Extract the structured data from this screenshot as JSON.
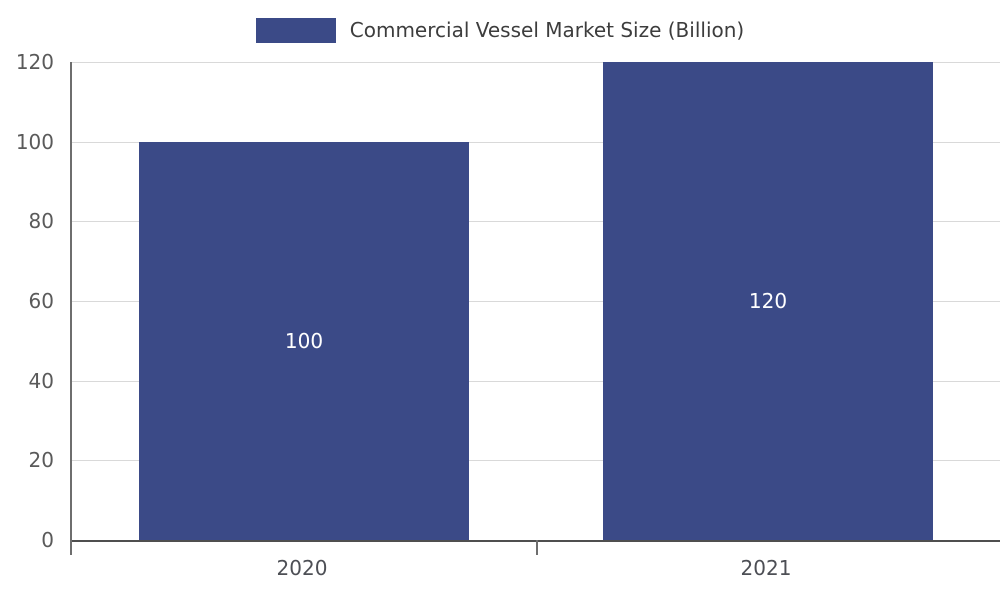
{
  "chart_data": {
    "type": "bar",
    "categories": [
      "2020",
      "2021"
    ],
    "values": [
      100,
      120
    ],
    "series_name": "Commercial Vessel Market Size (Billion)",
    "title": "",
    "xlabel": "",
    "ylabel": "",
    "ylim": [
      0,
      120
    ],
    "yticks": [
      0,
      20,
      40,
      60,
      80,
      100,
      120
    ],
    "bar_color": "#3b4a87",
    "value_label_color": "#ffffff",
    "grid": true,
    "legend_position": "top-center"
  }
}
